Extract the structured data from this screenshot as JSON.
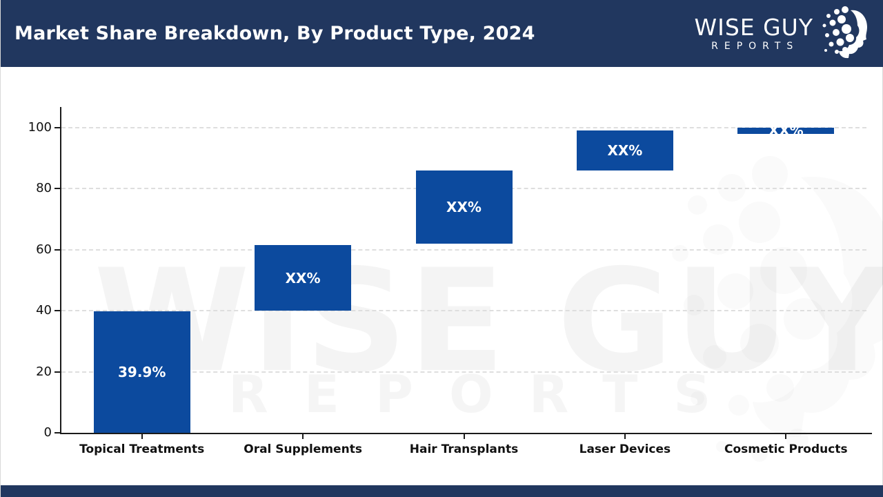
{
  "header": {
    "title": "Market Share Breakdown, By Product Type, 2024",
    "brand": {
      "line1": "WISE GUY",
      "line2": "REPORTS"
    }
  },
  "watermark": {
    "line1": "WISE GUY",
    "line2": "REPORTS"
  },
  "colors": {
    "header_navy": "#21375f",
    "footer_navy": "#21375f",
    "bar_blue": "#0c4a9e",
    "grid_gray": "#dedede",
    "text_black": "#111111",
    "label_white": "#ffffff"
  },
  "chart_data": {
    "type": "bar",
    "subtype": "waterfall",
    "title": "Market Share Breakdown, By Product Type, 2024",
    "xlabel": "",
    "ylabel": "",
    "ylim": [
      0,
      100
    ],
    "y_ticks": [
      0,
      20,
      40,
      60,
      80,
      100
    ],
    "grid": "dashed-horizontal",
    "legend": "none",
    "categories": [
      "Topical Treatments",
      "Oral Supplements",
      "Hair Transplants",
      "Laser Devices",
      "Cosmetic Products"
    ],
    "bars": [
      {
        "category": "Topical Treatments",
        "base": 0,
        "top": 39.9,
        "label": "39.9%"
      },
      {
        "category": "Oral Supplements",
        "base": 40,
        "top": 61.5,
        "label": "XX%"
      },
      {
        "category": "Hair Transplants",
        "base": 62,
        "top": 86,
        "label": "XX%"
      },
      {
        "category": "Laser Devices",
        "base": 86,
        "top": 99,
        "label": "XX%"
      },
      {
        "category": "Cosmetic Products",
        "base": 98,
        "top": 100,
        "label": "XX%"
      }
    ]
  }
}
